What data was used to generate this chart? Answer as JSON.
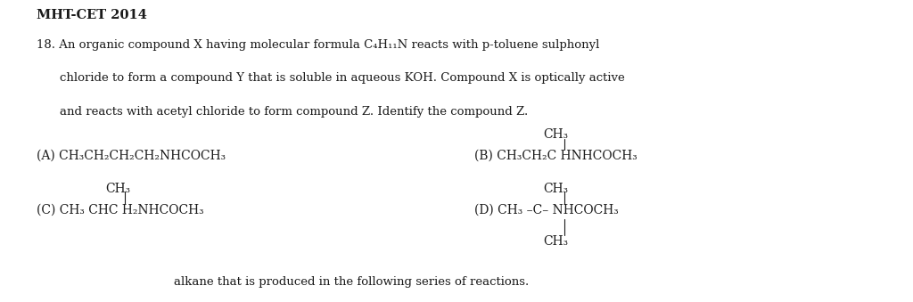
{
  "title": "MHT-CET 2014",
  "q_num": "18.",
  "q_line1": "An organic compound X having molecular formula C₄H₁₁N reacts with p-toluene sulphonyl",
  "q_line2": "chloride to form a compound Y that is soluble in aqueous KOH. Compound X is optically active",
  "q_line3": "and reacts with acetyl chloride to form compound Z. Identify the compound Z.",
  "optA": "(A) CH₃CH₂CH₂CH₂NHCOCH₃",
  "optB_branch": "CH₃",
  "optB": "(B) CH₃CH₂C HNHCOCH₃",
  "optC_branch": "CH₃",
  "optC": "(C) CH₃ CHC H₂NHCOCH₃",
  "optD_branch_top": "CH₃",
  "optD": "(D) CH₃ –C– NHCOCH₃",
  "optD_branch_bot": "CH₃",
  "footer": "alkane that is produced in the following series of reactions.",
  "bg_color": "#ffffff",
  "text_color": "#1a1a1a",
  "fs_title": 10.5,
  "fs_body": 9.5,
  "fs_opt": 10,
  "fig_w": 10.24,
  "fig_h": 3.39
}
